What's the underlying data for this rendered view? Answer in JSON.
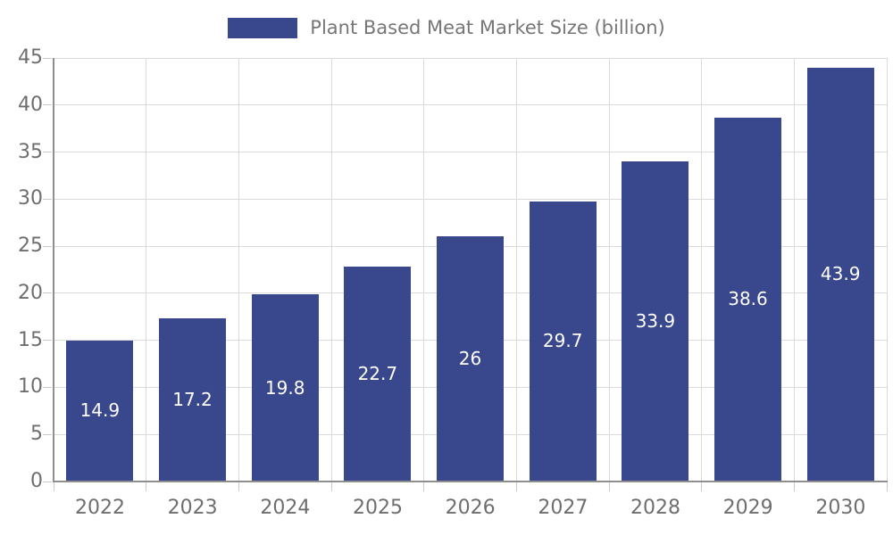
{
  "legend": {
    "label": "Plant Based Meat Market Size (billion)",
    "swatch_color": "#39478c"
  },
  "chart_data": {
    "type": "bar",
    "title": "Plant Based Meat Market Size (billion)",
    "categories": [
      "2022",
      "2023",
      "2024",
      "2025",
      "2026",
      "2027",
      "2028",
      "2029",
      "2030"
    ],
    "values": [
      14.9,
      17.2,
      19.8,
      22.7,
      26,
      29.7,
      33.9,
      38.6,
      43.9
    ],
    "value_labels": [
      "14.9",
      "17.2",
      "19.8",
      "22.7",
      "26",
      "29.7",
      "33.9",
      "38.6",
      "43.9"
    ],
    "xlabel": "",
    "ylabel": "",
    "ylim": [
      0,
      45
    ],
    "yticks": [
      0,
      5,
      10,
      15,
      20,
      25,
      30,
      35,
      40,
      45
    ],
    "grid": true,
    "legend_position": "top-center",
    "bar_color": "#39478c",
    "value_label_color": "#ffffff"
  }
}
